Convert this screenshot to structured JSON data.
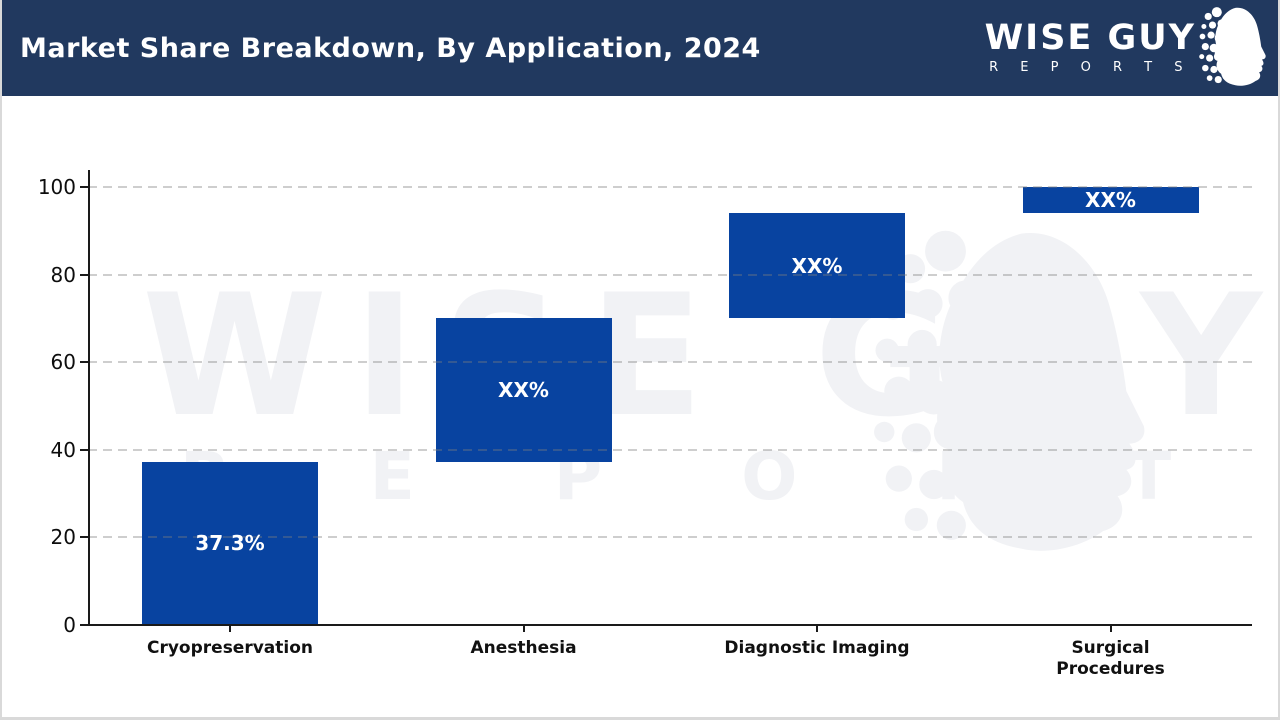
{
  "header": {
    "title": "Market Share Breakdown, By Application, 2024",
    "logo": {
      "line1": "WISE GUY",
      "line2": "R E P O R T S"
    }
  },
  "watermark": {
    "line1": "WISE GUY",
    "line2": "R E P O R T S"
  },
  "chart_data": {
    "type": "bar",
    "subtype": "floating-waterfall",
    "title": "Market Share Breakdown, By Application, 2024",
    "categories": [
      "Cryopreservation",
      "Anesthesia",
      "Diagnostic Imaging",
      "Surgical Procedures"
    ],
    "categories_wrapped": [
      [
        "Cryopreservation"
      ],
      [
        "Anesthesia"
      ],
      [
        "Diagnostic Imaging"
      ],
      [
        "Surgical",
        "Procedures"
      ]
    ],
    "segments": [
      {
        "category": "Cryopreservation",
        "start": 0,
        "end": 37.3,
        "label": "37.3%"
      },
      {
        "category": "Anesthesia",
        "start": 37.3,
        "end": 70,
        "label": "XX%"
      },
      {
        "category": "Diagnostic Imaging",
        "start": 70,
        "end": 94,
        "label": "XX%"
      },
      {
        "category": "Surgical Procedures",
        "start": 94,
        "end": 100,
        "label": "XX%"
      }
    ],
    "xlabel": "",
    "ylabel": "",
    "ylim": [
      0,
      100
    ],
    "yticks": [
      0,
      20,
      40,
      60,
      80,
      100
    ],
    "grid": "horizontal dashed, drawn above bars",
    "legend": "none",
    "bar_color": "#0843a0",
    "bar_label_color": "#ffffff"
  }
}
